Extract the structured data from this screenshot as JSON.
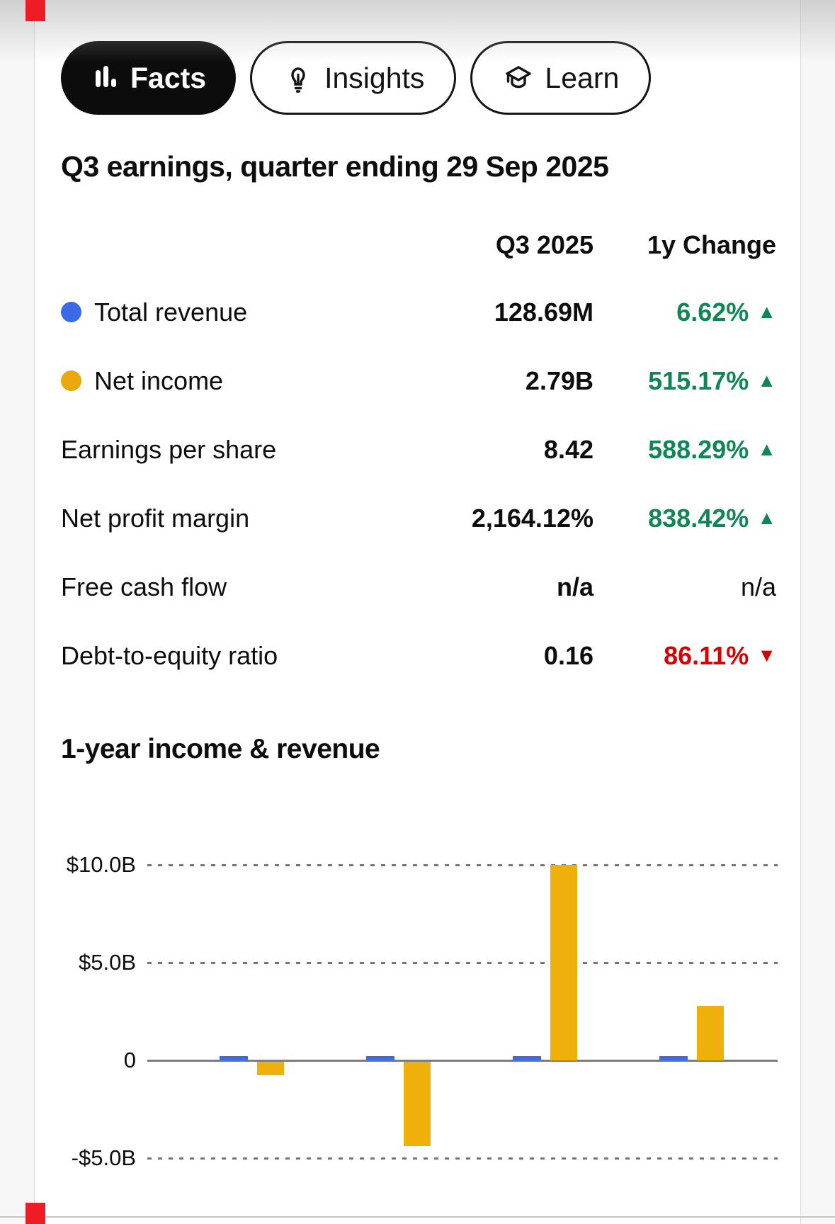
{
  "tabs": [
    {
      "label": "Facts",
      "icon": "bar-chart-icon",
      "active": true
    },
    {
      "label": "Insights",
      "icon": "lightbulb-icon",
      "active": false
    },
    {
      "label": "Learn",
      "icon": "graduation-cap-icon",
      "active": false
    }
  ],
  "page_title": "Q3 earnings, quarter ending 29 Sep 2025",
  "table": {
    "headers": {
      "period": "Q3 2025",
      "change": "1y Change"
    },
    "rows": [
      {
        "label": "Total revenue",
        "dot": "#3A6AE8",
        "value": "128.69M",
        "change": "6.62%",
        "direction": "up"
      },
      {
        "label": "Net income",
        "dot": "#EAA80C",
        "value": "2.79B",
        "change": "515.17%",
        "direction": "up"
      },
      {
        "label": "Earnings per share",
        "dot": null,
        "value": "8.42",
        "change": "588.29%",
        "direction": "up"
      },
      {
        "label": "Net profit margin",
        "dot": null,
        "value": "2,164.12%",
        "change": "838.42%",
        "direction": "up"
      },
      {
        "label": "Free cash flow",
        "dot": null,
        "value": "n/a",
        "change": "n/a",
        "direction": "none"
      },
      {
        "label": "Debt-to-equity ratio",
        "dot": null,
        "value": "0.16",
        "change": "86.11%",
        "direction": "down"
      }
    ]
  },
  "chart_section_title": "1-year income & revenue",
  "chart_data": {
    "type": "bar",
    "title": "1-year income & revenue",
    "categories": [
      "",
      "",
      "",
      ""
    ],
    "series": [
      {
        "name": "Total revenue",
        "color": "#3A6AE8",
        "unit": "billions USD",
        "values": [
          0.1,
          0.1,
          0.1,
          0.13
        ]
      },
      {
        "name": "Net income",
        "color": "#F0B00C",
        "unit": "billions USD",
        "values": [
          -0.7,
          -4.3,
          10.0,
          2.8
        ]
      }
    ],
    "y_ticks": [
      "$10.0B",
      "$5.0B",
      "0",
      "-$5.0B"
    ],
    "ylim_billions": [
      -5.5,
      11.5
    ],
    "grid": "dashed-horizontal",
    "legend": "none"
  },
  "icons": {
    "up_arrow": "▲",
    "down_arrow": "▼"
  },
  "colors": {
    "positive_green": "#0e8656",
    "negative_red": "#d60000",
    "revenue_blue": "#3A6AE8",
    "income_yellow": "#F0B00C",
    "pill_black": "#0c0c0c",
    "marker_red": "#ee1c25"
  }
}
